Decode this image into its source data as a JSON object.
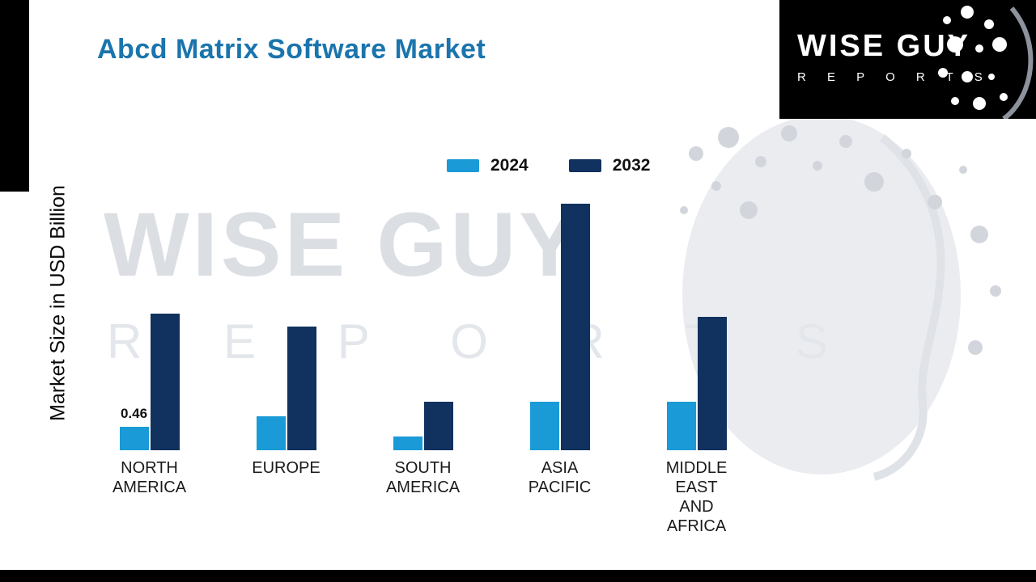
{
  "title": "Abcd Matrix Software Market",
  "ylabel": "Market Size in USD Billion",
  "logo": {
    "line1": "WISE GUY",
    "line2": "R E P O R T S"
  },
  "watermark": {
    "line1": "WISE GUY",
    "line2": "R E P O R T S"
  },
  "colors": {
    "title": "#1b75ad",
    "series_2024": "#1a9ad6",
    "series_2032": "#11315e",
    "frame": "#000000"
  },
  "chart_data": {
    "type": "bar",
    "title": "Abcd Matrix Software Market",
    "ylabel": "Market Size in USD Billion",
    "xlabel": "",
    "ylim": [
      0,
      5
    ],
    "grid": false,
    "legend_position": "top",
    "categories": [
      "NORTH AMERICA",
      "EUROPE",
      "SOUTH AMERICA",
      "ASIA PACIFIC",
      "MIDDLE EAST AND AFRICA"
    ],
    "tick_labels": [
      "NORTH\nAMERICA",
      "EUROPE",
      "SOUTH\nAMERICA",
      "ASIA\nPACIFIC",
      "MIDDLE\nEAST\nAND\nAFRICA"
    ],
    "series": [
      {
        "name": "2024",
        "color": "#1a9ad6",
        "values": [
          0.46,
          0.67,
          0.27,
          0.95,
          0.95
        ]
      },
      {
        "name": "2032",
        "color": "#11315e",
        "values": [
          2.68,
          2.43,
          0.95,
          4.84,
          2.62
        ]
      }
    ],
    "annotation": {
      "text": "0.46",
      "series_index": 0,
      "category_index": 0
    }
  }
}
